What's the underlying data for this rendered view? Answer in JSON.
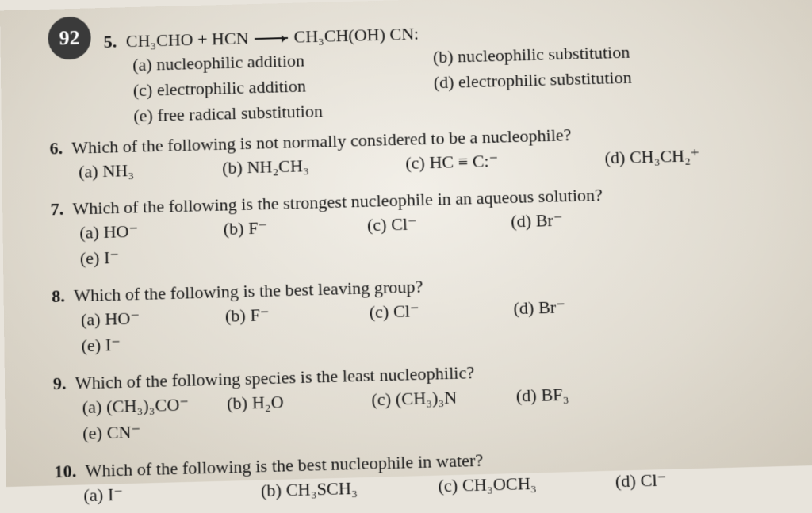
{
  "page_number": "92",
  "q5": {
    "num": "5.",
    "reaction_left": "CH₃CHO + HCN",
    "reaction_right": "CH₃CH(OH) CN:",
    "a": "(a) nucleophilic addition",
    "b": "(b) nucleophilic substitution",
    "c": "(c) electrophilic addition",
    "d": "(d) electrophilic substitution",
    "e": "(e) free radical substitution"
  },
  "q6": {
    "num": "6.",
    "text": "Which of the following is not normally considered to be a nucleophile?",
    "a": "(a) NH₃",
    "b": "(b) NH₂CH₃",
    "c": "(c) HC ≡ C:⁻",
    "d": "(d) CH₃CH₂⁺"
  },
  "q7": {
    "num": "7.",
    "text": "Which of the following is the strongest nucleophile in an aqueous solution?",
    "a": "(a) HO⁻",
    "b": "(b) F⁻",
    "c": "(c) Cl⁻",
    "d": "(d) Br⁻",
    "e": "(e) I⁻"
  },
  "q8": {
    "num": "8.",
    "text": "Which of the following is the best leaving group?",
    "a": "(a) HO⁻",
    "b": "(b) F⁻",
    "c": "(c) Cl⁻",
    "d": "(d) Br⁻",
    "e": "(e) I⁻"
  },
  "q9": {
    "num": "9.",
    "text": "Which of the following species is the least nucleophilic?",
    "a": "(a) (CH₃)₃CO⁻",
    "b": "(b) H₂O",
    "c": "(c) (CH₃)₃N",
    "d": "(d) BF₃",
    "e": "(e) CN⁻"
  },
  "q10": {
    "num": "10.",
    "text": "Which of the following is the best nucleophile in water?",
    "a": "(a) I⁻",
    "b": "(b) CH₃SCH₃",
    "c": "(c) CH₃OCH₃",
    "d": "(d) Cl⁻"
  }
}
